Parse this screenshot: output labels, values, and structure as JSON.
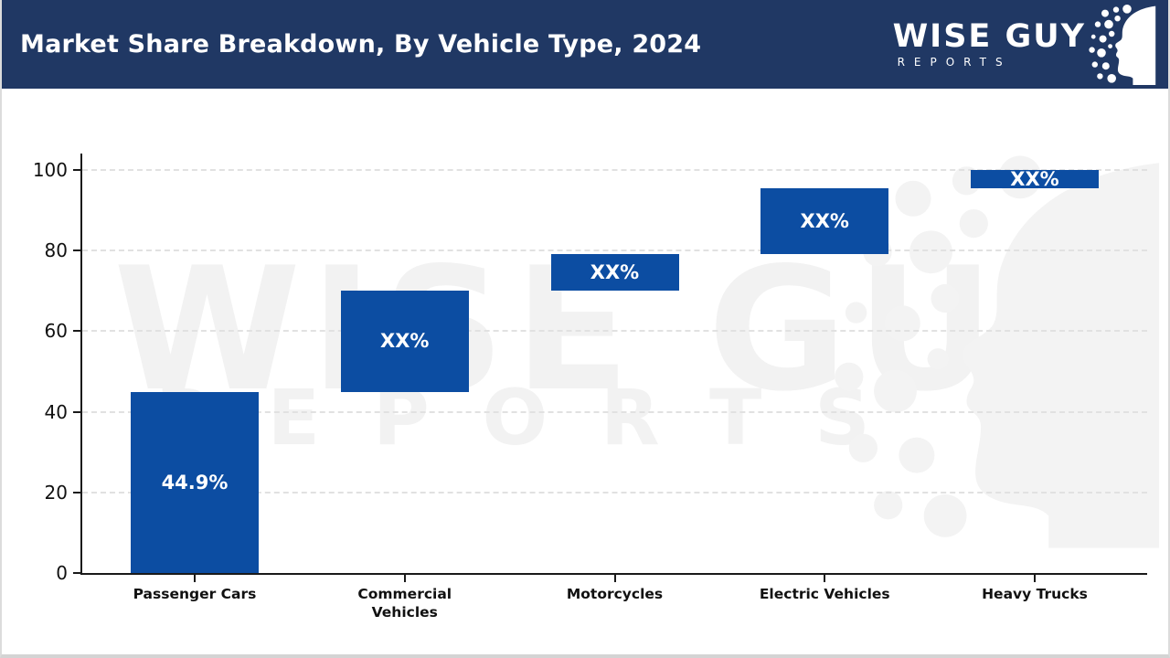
{
  "header": {
    "title": "Market Share Breakdown, By Vehicle Type, 2024",
    "bg_color": "#203864",
    "logo": {
      "name": "WISE GUY",
      "sub": "REPORTS"
    }
  },
  "watermark": {
    "line1": "WISE GUY",
    "line2": "REPORTS"
  },
  "chart_data": {
    "type": "bar",
    "subtype": "waterfall",
    "title": "Market Share Breakdown, By Vehicle Type, 2024",
    "categories": [
      "Passenger Cars",
      "Commercial Vehicles",
      "Motorcycles",
      "Electric Vehicles",
      "Heavy Trucks"
    ],
    "tick_labels": [
      "Passenger Cars",
      "Commercial\nVehicles",
      "Motorcycles",
      "Electric Vehicles",
      "Heavy Trucks"
    ],
    "segments": [
      {
        "category": "Passenger Cars",
        "start": 0,
        "end": 44.9,
        "label": "44.9%"
      },
      {
        "category": "Commercial Vehicles",
        "start": 44.9,
        "end": 70.1,
        "label": "XX%"
      },
      {
        "category": "Motorcycles",
        "start": 70.1,
        "end": 79.1,
        "label": "XX%"
      },
      {
        "category": "Electric Vehicles",
        "start": 79.2,
        "end": 95.5,
        "label": "XX%"
      },
      {
        "category": "Heavy Trucks",
        "start": 95.5,
        "end": 100,
        "label": "XX%"
      }
    ],
    "ylim": [
      0,
      100
    ],
    "yticks": [
      0,
      20,
      40,
      60,
      80,
      100
    ],
    "xlabel": "",
    "ylabel": "",
    "grid": "horizontal-dashed",
    "legend": "none",
    "bar_color": "#0C4DA2",
    "bar_label_color": "#ffffff",
    "axis_color": "#1a1a1a"
  }
}
